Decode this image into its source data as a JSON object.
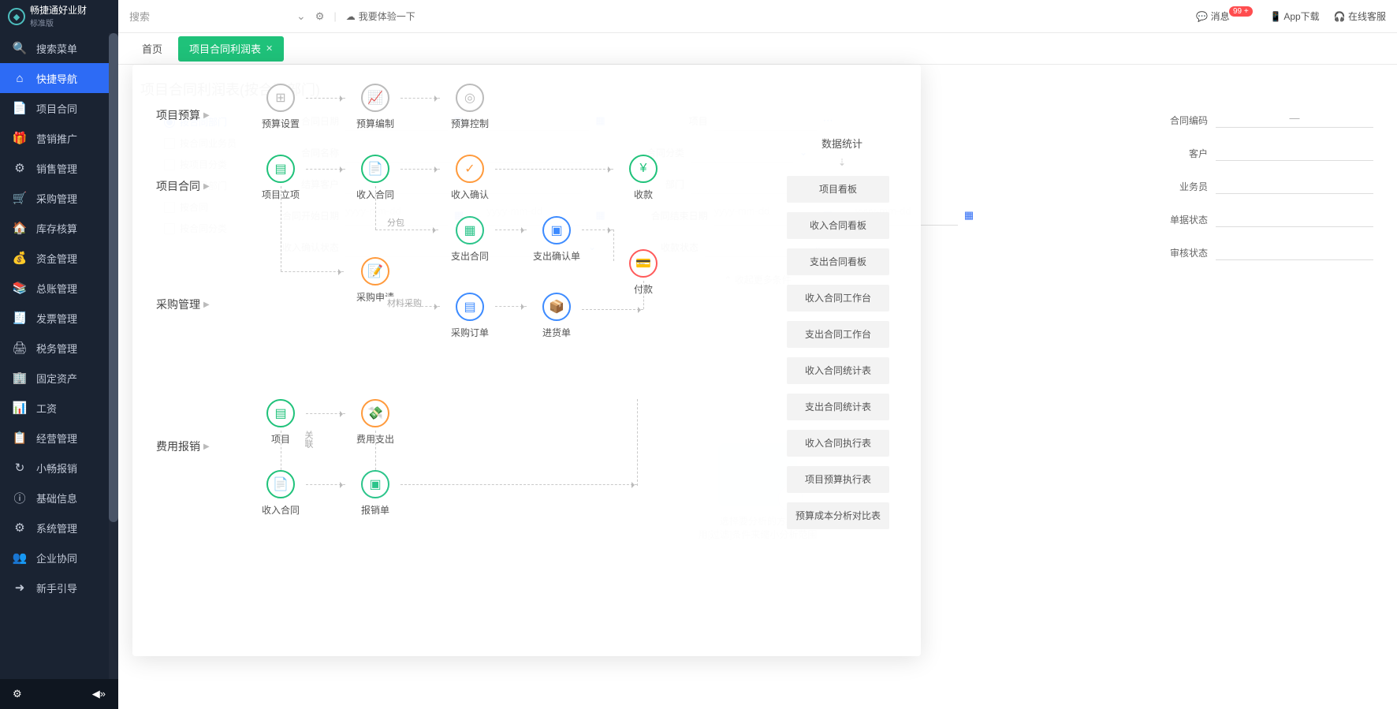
{
  "brand": {
    "name": "畅捷通好业财",
    "edition": "标准版"
  },
  "top": {
    "search_placeholder": "搜索",
    "promo": "我要体验一下",
    "msg_label": "消息",
    "msg_badge": "99 +",
    "download": "App下载",
    "service": "在线客服"
  },
  "sidebar": {
    "items": [
      {
        "icon": "🔍",
        "label": "搜索菜单"
      },
      {
        "icon": "⌂",
        "label": "快捷导航",
        "active": true
      },
      {
        "icon": "📄",
        "label": "项目合同"
      },
      {
        "icon": "🎁",
        "label": "营销推广"
      },
      {
        "icon": "⚙",
        "label": "销售管理"
      },
      {
        "icon": "🛒",
        "label": "采购管理"
      },
      {
        "icon": "🏠",
        "label": "库存核算"
      },
      {
        "icon": "💰",
        "label": "资金管理"
      },
      {
        "icon": "📚",
        "label": "总账管理"
      },
      {
        "icon": "🧾",
        "label": "发票管理"
      },
      {
        "icon": "🖨",
        "label": "税务管理"
      },
      {
        "icon": "🏢",
        "label": "固定资产"
      },
      {
        "icon": "📊",
        "label": "工资"
      },
      {
        "icon": "📋",
        "label": "经营管理"
      },
      {
        "icon": "↻",
        "label": "小畅报销"
      },
      {
        "icon": "ⓘ",
        "label": "基础信息"
      },
      {
        "icon": "⚙",
        "label": "系统管理"
      },
      {
        "icon": "👥",
        "label": "企业协同"
      },
      {
        "icon": "➜",
        "label": "新手引导"
      }
    ]
  },
  "tabs": {
    "home": "首页",
    "active": "项目合同利润表"
  },
  "report": {
    "title": "项目合同利润表(按合同部门)",
    "section_dim": "按核对及维度",
    "radios": [
      {
        "label": "按合同部门",
        "sel": true
      },
      {
        "label": "按合同业务员"
      },
      {
        "label": "按项目分类"
      },
      {
        "label": "按项目部门"
      },
      {
        "label": "按合同"
      },
      {
        "label": "按合同分类"
      }
    ],
    "fields": {
      "contract_date": "合同日期",
      "project": "项目",
      "contract_code": "合同编码",
      "contract_name": "合同名称",
      "contract_type": "合同分类",
      "customer": "客户",
      "settle_cust": "结算客户",
      "dept": "部门",
      "salesman": "业务员",
      "start_date": "合同开始日期",
      "end_date": "合同结束日期",
      "bill_status": "单据状态",
      "confirm_status": "收入确认状态",
      "collect_status": "收款状态",
      "audit_status": "审核状态"
    },
    "date_ph": "yyyy-mm-dd",
    "collapse": "收起更多条件",
    "placeholder_l1": "选择要分析的方案",
    "placeholder_l2": "用[过滤]条件来缩小分析范围"
  },
  "qnav": {
    "sections": {
      "budget": {
        "title": "项目预算",
        "nodes": [
          "预算设置",
          "预算编制",
          "预算控制"
        ]
      },
      "contract": {
        "title": "项目合同",
        "nodes": [
          "项目立项",
          "收入合同",
          "收入确认",
          "收款",
          "支出合同",
          "支出确认单",
          "付款",
          "采购申请",
          "采购订单",
          "进货单"
        ],
        "edge_labels": {
          "subcontract": "分包",
          "material": "材料采购"
        }
      },
      "purchase": {
        "title": "采购管理"
      },
      "expense": {
        "title": "费用报销",
        "nodes": [
          "项目",
          "费用支出",
          "收入合同",
          "报销单"
        ],
        "edge_label": "关联"
      }
    },
    "stats": {
      "title": "数据统计",
      "buttons": [
        "项目看板",
        "收入合同看板",
        "支出合同看板",
        "收入合同工作台",
        "支出合同工作台",
        "收入合同统计表",
        "支出合同统计表",
        "收入合同执行表",
        "项目预算执行表",
        "预算成本分析对比表"
      ]
    }
  },
  "colors": {
    "sidebar_bg": "#1a2332",
    "active_blue": "#2d6bf5",
    "tab_green": "#1fc27a",
    "icon_gray": "#bbbbbb",
    "icon_teal": "#1fc27a",
    "icon_orange": "#ff9a3c",
    "icon_blue": "#3d8bff",
    "icon_red": "#ff5a5a"
  }
}
